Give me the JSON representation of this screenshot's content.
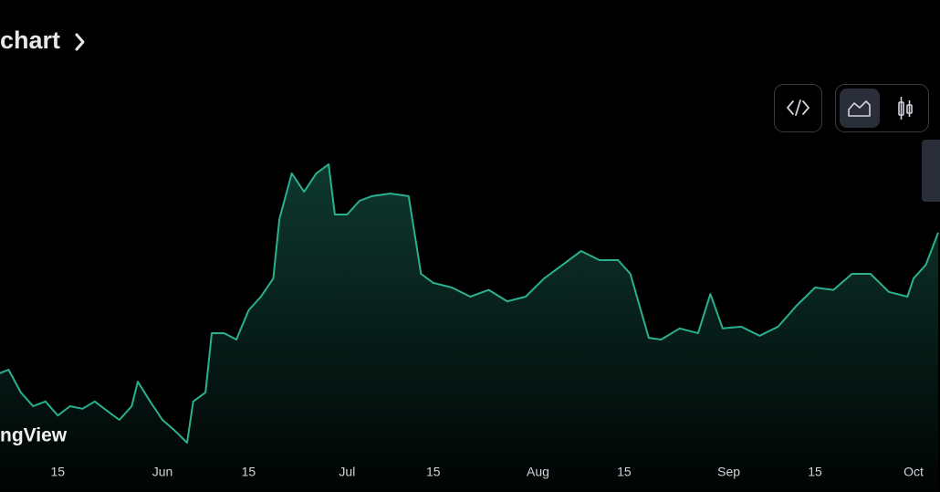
{
  "header": {
    "title": "chart"
  },
  "watermark": "ngView",
  "chart_data": {
    "type": "area",
    "x": [
      "May 5",
      "May 7",
      "May 9",
      "May 11",
      "May 13",
      "May 15",
      "May 17",
      "May 19",
      "May 21",
      "May 23",
      "May 25",
      "May 27",
      "May 28",
      "May 30",
      "Jun 1",
      "Jun 3",
      "Jun 5",
      "Jun 6",
      "Jun 8",
      "Jun 9",
      "Jun 11",
      "Jun 13",
      "Jun 15",
      "Jun 17",
      "Jun 19",
      "Jun 20",
      "Jun 22",
      "Jun 24",
      "Jun 26",
      "Jun 28",
      "Jun 29",
      "Jul 1",
      "Jul 3",
      "Jul 5",
      "Jul 8",
      "Jul 11",
      "Jul 13",
      "Jul 15",
      "Jul 18",
      "Jul 21",
      "Jul 24",
      "Jul 27",
      "Jul 30",
      "Aug 2",
      "Aug 5",
      "Aug 8",
      "Aug 11",
      "Aug 14",
      "Aug 16",
      "Aug 19",
      "Aug 21",
      "Aug 24",
      "Aug 27",
      "Aug 29",
      "Aug 31",
      "Sep 3",
      "Sep 6",
      "Sep 9",
      "Sep 12",
      "Sep 15",
      "Sep 18",
      "Sep 21",
      "Sep 24",
      "Sep 27",
      "Sep 30",
      "Oct 1",
      "Oct 3",
      "Oct 5"
    ],
    "values": [
      28,
      29.7,
      21.9,
      17.2,
      18.8,
      14,
      17.2,
      16.3,
      18.8,
      15.6,
      12.5,
      17.2,
      25.6,
      18.8,
      12.5,
      8.8,
      4.7,
      18.8,
      21.9,
      42.2,
      42.2,
      40,
      50,
      54.7,
      60.9,
      81.3,
      96.9,
      90.6,
      96.9,
      100,
      82.8,
      82.8,
      87.5,
      89.1,
      90,
      89.1,
      62.5,
      59.4,
      57.8,
      54.7,
      57,
      53.1,
      54.7,
      60.9,
      65.6,
      70.3,
      67.2,
      67.2,
      62.5,
      40.6,
      40,
      43.8,
      42.2,
      55.6,
      43.8,
      44.4,
      41.3,
      44.4,
      51.6,
      57.8,
      57,
      62.5,
      62.5,
      56.3,
      54.7,
      60.9,
      65.6,
      76.6
    ],
    "color": "#2bb08f",
    "ylim": [
      0,
      100
    ],
    "xticks": [
      {
        "value": "May 15",
        "label": "15"
      },
      {
        "value": "Jun 1",
        "label": "Jun"
      },
      {
        "value": "Jun 15",
        "label": "15"
      },
      {
        "value": "Jul 1",
        "label": "Jul"
      },
      {
        "value": "Jul 15",
        "label": "15"
      },
      {
        "value": "Aug 1",
        "label": "Aug"
      },
      {
        "value": "Aug 15",
        "label": "15"
      },
      {
        "value": "Sep 1",
        "label": "Sep"
      },
      {
        "value": "Sep 15",
        "label": "15"
      },
      {
        "value": "Oct 1",
        "label": "Oct"
      }
    ]
  }
}
